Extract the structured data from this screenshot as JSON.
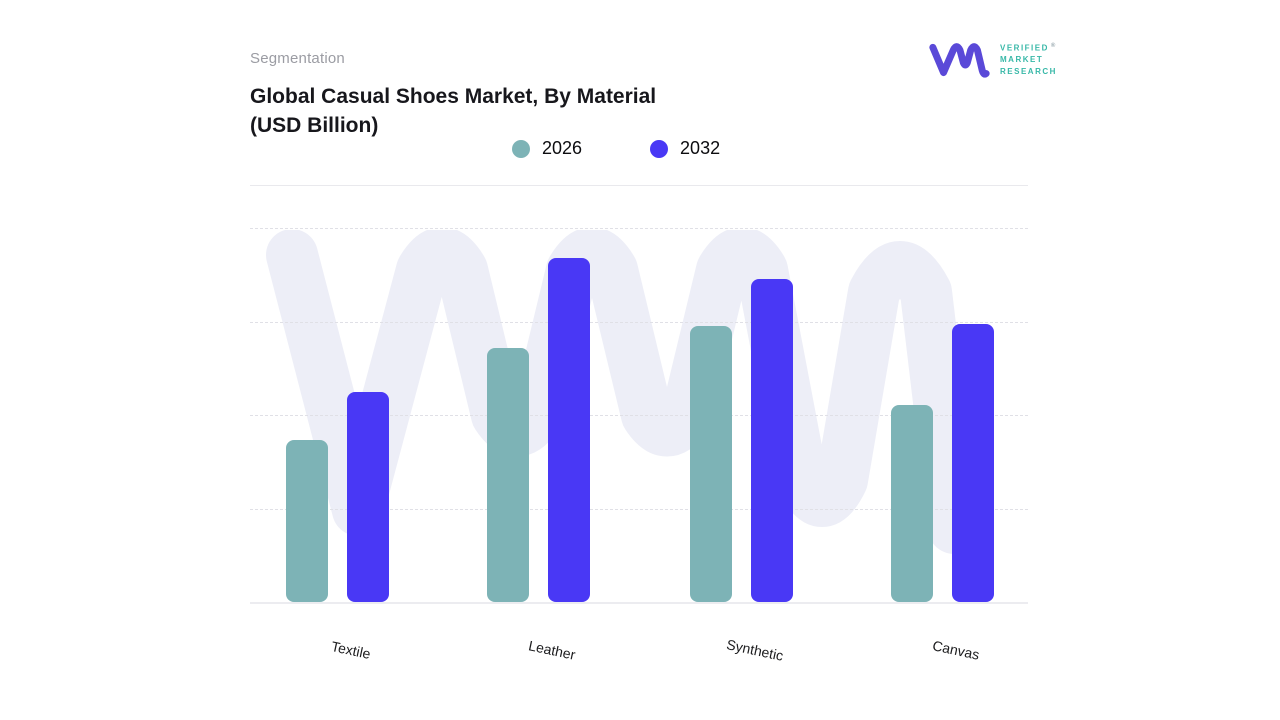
{
  "page": {
    "background": "#ffffff"
  },
  "header": {
    "eyebrow": "Segmentation",
    "title_line1": "Global Casual Shoes Market, By Material",
    "title_line2": "(USD Billion)"
  },
  "brand": {
    "glyph": "vmr-monogram",
    "text_lines": [
      "VERIFIED",
      "MARKET",
      "RESEARCH"
    ],
    "registered": "®",
    "glyph_color": "#5a49d8",
    "text_color": "#38b8a8",
    "registered_color": "#97a8ae"
  },
  "chart_data": {
    "type": "bar",
    "title": "Global Casual Shoes Market, By Material (USD Billion)",
    "categories": [
      "Textile",
      "Leather",
      "Synthetic",
      "Canvas"
    ],
    "series": [
      {
        "name": "2026",
        "color": "#7db3b6",
        "values": [
          43.3,
          67.9,
          73.8,
          52.7
        ]
      },
      {
        "name": "2032",
        "color": "#4938f5",
        "values": [
          56.1,
          92.0,
          86.4,
          74.3
        ]
      }
    ],
    "value_axis": {
      "tick_labels_visible": false,
      "unit": "percent of plot height (no numeric axis labels shown in image)",
      "ylim": [
        0,
        100
      ],
      "gridline_values": [
        25,
        50,
        75,
        100
      ]
    },
    "xlabel": "",
    "ylabel": "USD Billion",
    "grid": "horizontal-dashed",
    "legend_position": "top-center",
    "background_watermark": "vmr-monogram"
  },
  "colors": {
    "series_2026": "#7db3b6",
    "series_2032": "#4938f5",
    "watermark": "#edeef7",
    "gridline": "#e0e0e6",
    "baseline": "#ececf0",
    "divider": "#e9e9ed",
    "eyebrow_text": "#9b9ca3",
    "title_text": "#17171c",
    "axis_label_text": "#1c1c1e"
  }
}
